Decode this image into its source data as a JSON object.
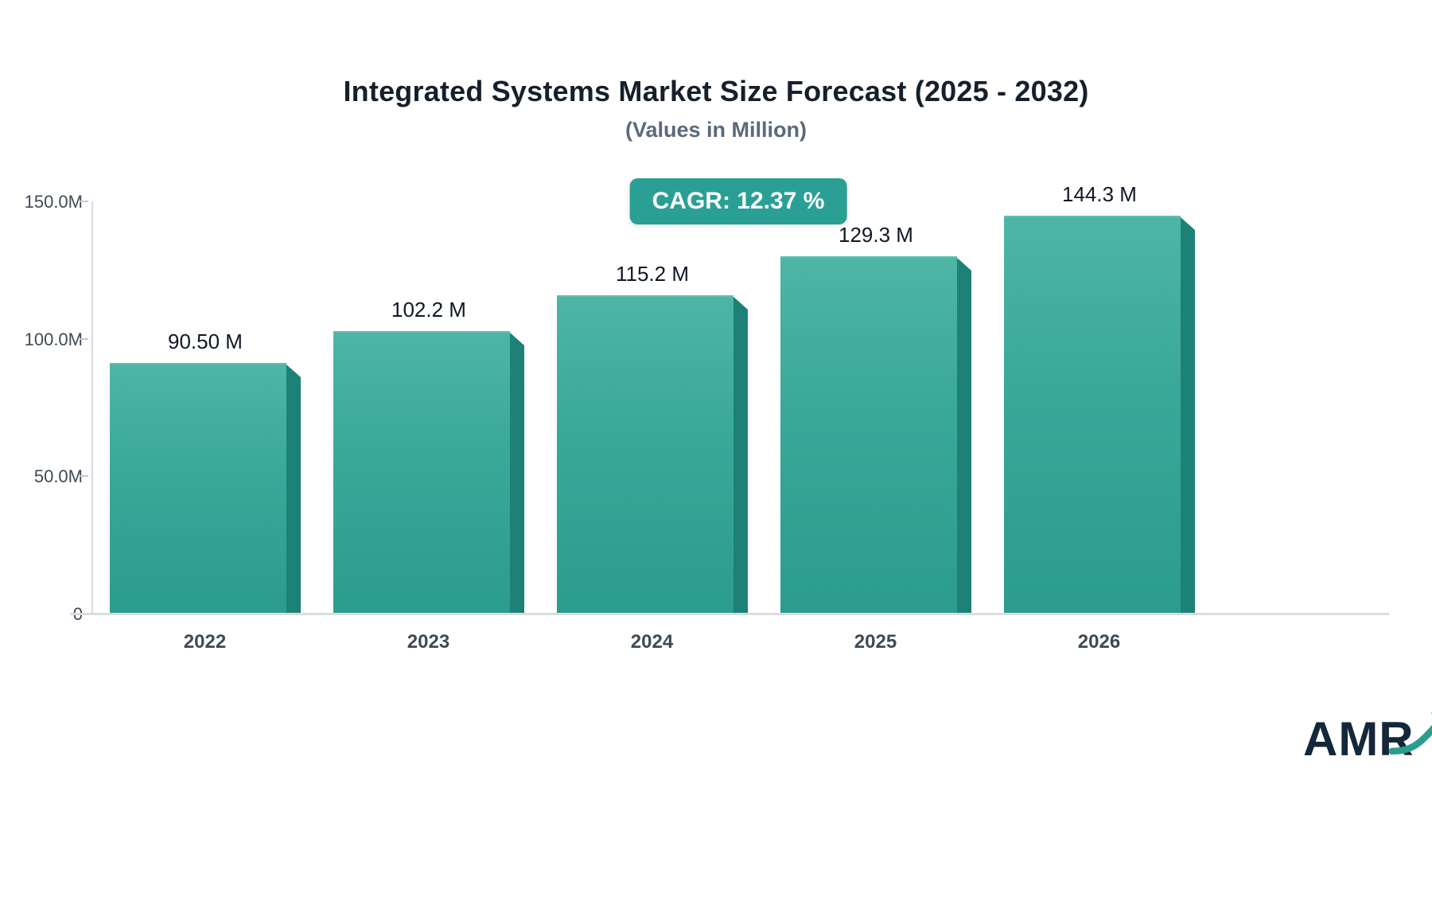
{
  "title": "Integrated Systems Market Size Forecast (2025 - 2032)",
  "subtitle": "(Values in Million)",
  "cagr_badge": "CAGR: 12.37 %",
  "logo": {
    "text": "AMR",
    "arrow_icon": "trend-arrow-icon",
    "arrow_color": "#2a9d8f"
  },
  "colors": {
    "bar_face_top": "#4eb5a6",
    "bar_face_bottom": "#2b9c8d",
    "bar_side": "#1d8177",
    "badge_bg": "#2aa094",
    "axis": "#d9dcdf",
    "label_text": "#101826",
    "tick_text": "#3f4a56"
  },
  "chart_data": {
    "type": "bar",
    "categories": [
      "2022",
      "2023",
      "2024",
      "2025",
      "2026"
    ],
    "values": [
      90.5,
      102.2,
      115.2,
      129.3,
      144.3
    ],
    "value_labels": [
      "90.50 M",
      "102.2 M",
      "115.2 M",
      "129.3 M",
      "144.3 M"
    ],
    "title": "Integrated Systems Market Size Forecast (2025 - 2032)",
    "subtitle": "(Values in Million)",
    "xlabel": "",
    "ylabel": "",
    "ylim": [
      0,
      150
    ],
    "y_ticks": [
      {
        "value": 150,
        "label": "150.0M"
      },
      {
        "value": 100,
        "label": "100.0M"
      },
      {
        "value": 50,
        "label": "50.0M"
      },
      {
        "value": 0,
        "label": "0"
      }
    ],
    "grid": false,
    "legend": false,
    "bar_color": "#2b9c8d"
  }
}
